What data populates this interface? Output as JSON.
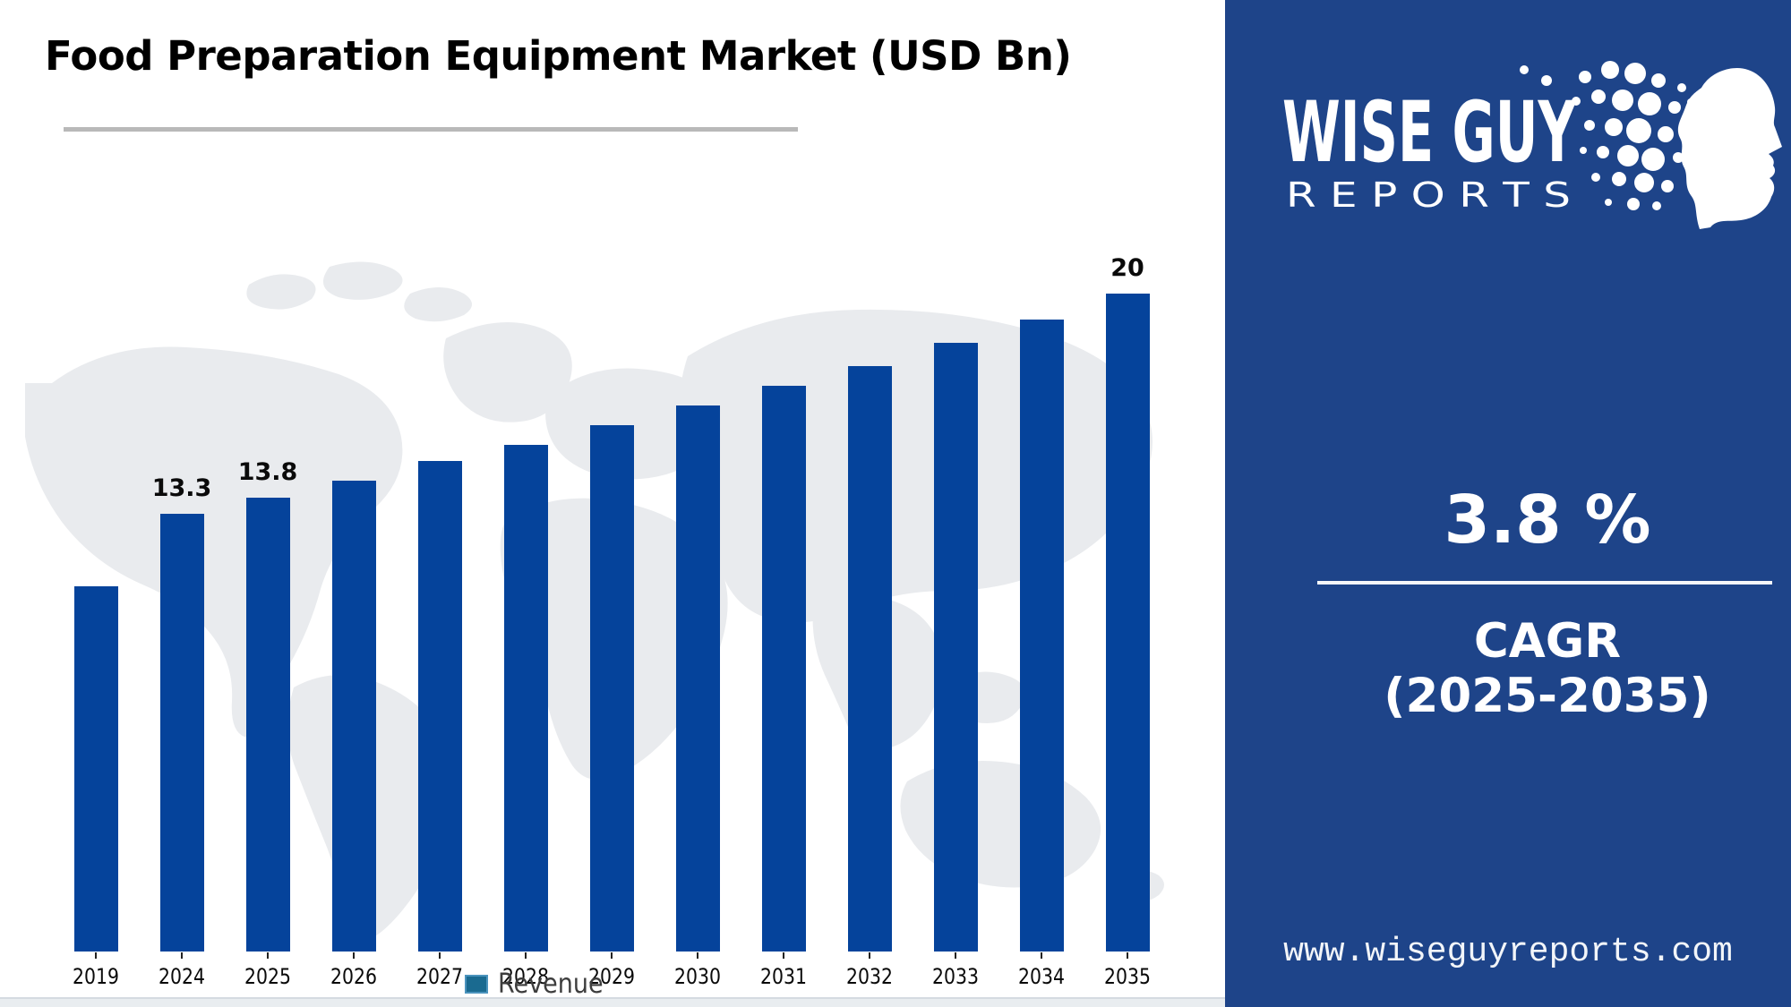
{
  "header": {
    "title": "Food Preparation Equipment Market (USD Bn)"
  },
  "chart_data": {
    "type": "bar",
    "title": "Food Preparation Equipment Market (USD Bn)",
    "categories": [
      "2019",
      "2024",
      "2025",
      "2026",
      "2027",
      "2028",
      "2029",
      "2030",
      "2031",
      "2032",
      "2033",
      "2034",
      "2035"
    ],
    "values": [
      11.1,
      13.3,
      13.8,
      14.3,
      14.9,
      15.4,
      16.0,
      16.6,
      17.2,
      17.8,
      18.5,
      19.2,
      20
    ],
    "point_labels": [
      "",
      "13.3",
      "13.8",
      "",
      "",
      "",
      "",
      "",
      "",
      "",
      "",
      "",
      "20"
    ],
    "series_name": "Revenue",
    "xlabel": "",
    "ylabel": "",
    "ylim": [
      0,
      21.5
    ],
    "grid": false,
    "legend_position": "bottom",
    "bar_color": "#05439b",
    "background_watermark": "world-map"
  },
  "legend": {
    "label": "Revenue",
    "swatch_color": "#1a6a90"
  },
  "sidebar": {
    "logo_line1": "WISE GUY",
    "logo_line2": "R E P O R T S",
    "cagr_value": "3.8 %",
    "cagr_label_line1": "CAGR",
    "cagr_label_line2": "(2025-2035)",
    "website": "www.wiseguyreports.com"
  },
  "colors": {
    "bar": "#05439b",
    "sidebar_background": "#1e4489",
    "map_watermark": "#e9ebee",
    "title_underline": "#b9b9b9",
    "legend_swatch": "#1a6a90",
    "legend_text": "#3d3d3d"
  }
}
